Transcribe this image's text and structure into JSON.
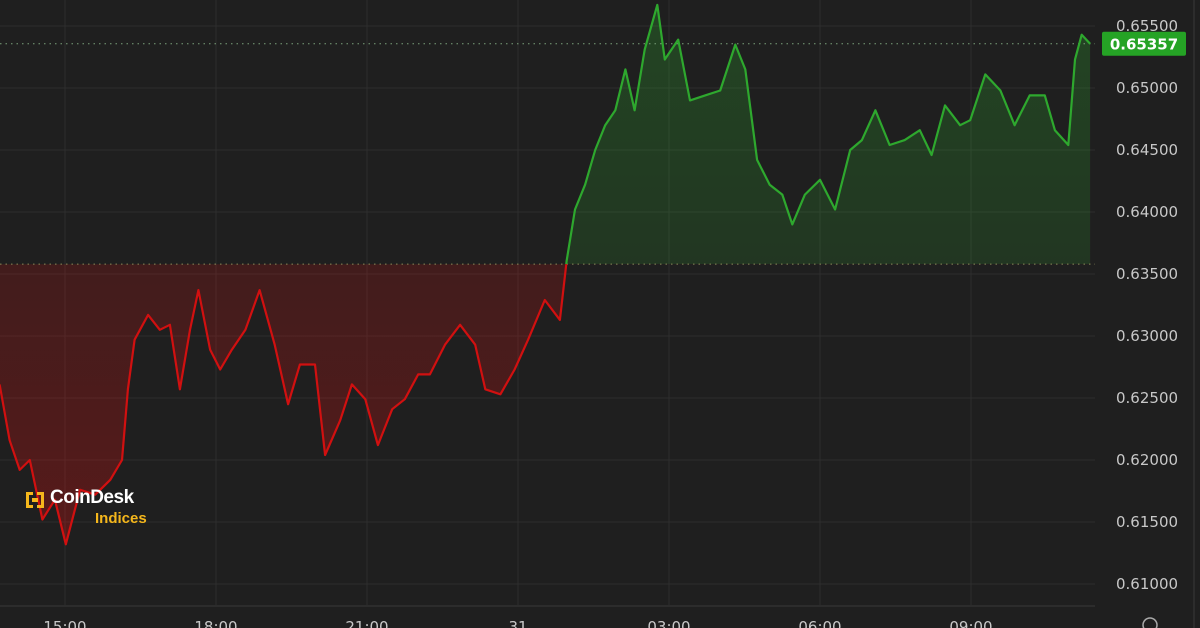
{
  "chart_data": {
    "type": "line",
    "title": "",
    "xlabel": "",
    "ylabel": "",
    "x_ticks": [
      "15:00",
      "18:00",
      "21:00",
      "31",
      "03:00",
      "06:00",
      "09:00"
    ],
    "y_ticks": [
      "0.61000",
      "0.61500",
      "0.62000",
      "0.62500",
      "0.63000",
      "0.63500",
      "0.64000",
      "0.64500",
      "0.65000",
      "0.65500"
    ],
    "ylim": [
      0.6077,
      0.6572
    ],
    "grid": true,
    "reference_price": 0.6358,
    "last_price": 0.65357,
    "last_price_label": "0.65357",
    "colors": {
      "up": "#2ea82e",
      "down": "#d11010",
      "last_price_badge": "#25a325",
      "background": "#1f1f1f"
    },
    "series": [
      {
        "points": [
          [
            "30 13:42",
            0.6261
          ],
          [
            "30 13:54",
            0.6216
          ],
          [
            "30 14:06",
            0.6192
          ],
          [
            "30 14:18",
            0.62
          ],
          [
            "30 14:33",
            0.6152
          ],
          [
            "30 14:48",
            0.6168
          ],
          [
            "30 15:01",
            0.6132
          ],
          [
            "30 15:18",
            0.6176
          ],
          [
            "30 15:36",
            0.6172
          ],
          [
            "30 15:54",
            0.6184
          ],
          [
            "30 16:08",
            0.62
          ],
          [
            "30 16:15",
            0.6257
          ],
          [
            "30 16:23",
            0.6297
          ],
          [
            "30 16:39",
            0.6317
          ],
          [
            "30 16:53",
            0.6305
          ],
          [
            "30 17:05",
            0.6309
          ],
          [
            "30 17:17",
            0.6257
          ],
          [
            "30 17:29",
            0.6305
          ],
          [
            "30 17:39",
            0.6337
          ],
          [
            "30 17:53",
            0.6289
          ],
          [
            "30 18:05",
            0.6273
          ],
          [
            "30 18:19",
            0.6289
          ],
          [
            "30 18:35",
            0.6305
          ],
          [
            "30 18:52",
            0.6337
          ],
          [
            "30 19:10",
            0.6293
          ],
          [
            "30 19:26",
            0.6245
          ],
          [
            "30 19:40",
            0.6277
          ],
          [
            "30 19:58",
            0.6277
          ],
          [
            "30 20:10",
            0.6204
          ],
          [
            "30 20:28",
            0.6232
          ],
          [
            "30 20:42",
            0.6261
          ],
          [
            "30 20:58",
            0.6249
          ],
          [
            "30 21:13",
            0.6212
          ],
          [
            "30 21:30",
            0.6241
          ],
          [
            "30 21:45",
            0.6249
          ],
          [
            "30 22:01",
            0.6269
          ],
          [
            "30 22:15",
            0.6269
          ],
          [
            "30 22:33",
            0.6293
          ],
          [
            "30 22:51",
            0.6309
          ],
          [
            "30 23:09",
            0.6293
          ],
          [
            "30 23:21",
            0.6257
          ],
          [
            "30 23:39",
            0.6253
          ],
          [
            "30 23:56",
            0.6273
          ],
          [
            "31 00:12",
            0.6297
          ],
          [
            "31 00:32",
            0.6329
          ],
          [
            "31 00:50",
            0.6313
          ],
          [
            "31 00:58",
            0.6361
          ],
          [
            "31 01:08",
            0.6402
          ],
          [
            "31 01:20",
            0.6422
          ],
          [
            "31 01:32",
            0.645
          ],
          [
            "31 01:44",
            0.647
          ],
          [
            "31 01:56",
            0.6482
          ],
          [
            "31 02:08",
            0.6515
          ],
          [
            "31 02:19",
            0.6482
          ],
          [
            "31 02:31",
            0.6531
          ],
          [
            "31 02:46",
            0.6567
          ],
          [
            "31 02:55",
            0.6523
          ],
          [
            "31 03:11",
            0.6539
          ],
          [
            "31 03:25",
            0.649
          ],
          [
            "31 03:43",
            0.6494
          ],
          [
            "31 04:01",
            0.6498
          ],
          [
            "31 04:19",
            0.6535
          ],
          [
            "31 04:31",
            0.6515
          ],
          [
            "31 04:45",
            0.6442
          ],
          [
            "31 05:00",
            0.6422
          ],
          [
            "31 05:15",
            0.6414
          ],
          [
            "31 05:27",
            0.639
          ],
          [
            "31 05:42",
            0.6414
          ],
          [
            "31 06:00",
            0.6426
          ],
          [
            "31 06:18",
            0.6402
          ],
          [
            "31 06:36",
            0.645
          ],
          [
            "31 06:50",
            0.6458
          ],
          [
            "31 07:06",
            0.6482
          ],
          [
            "31 07:23",
            0.6454
          ],
          [
            "31 07:41",
            0.6458
          ],
          [
            "31 07:59",
            0.6466
          ],
          [
            "31 08:13",
            0.6446
          ],
          [
            "31 08:29",
            0.6486
          ],
          [
            "31 08:47",
            0.647
          ],
          [
            "31 08:59",
            0.6474
          ],
          [
            "31 09:17",
            0.6511
          ],
          [
            "31 09:35",
            0.6498
          ],
          [
            "31 09:52",
            0.647
          ],
          [
            "31 10:10",
            0.6494
          ],
          [
            "31 10:28",
            0.6494
          ],
          [
            "31 10:40",
            0.6466
          ],
          [
            "31 10:56",
            0.6454
          ],
          [
            "31 11:04",
            0.6523
          ],
          [
            "31 11:12",
            0.6543
          ],
          [
            "31 11:22",
            0.65357
          ]
        ]
      }
    ]
  },
  "logo": {
    "brand": "CoinDesk",
    "sub": "Indices"
  }
}
